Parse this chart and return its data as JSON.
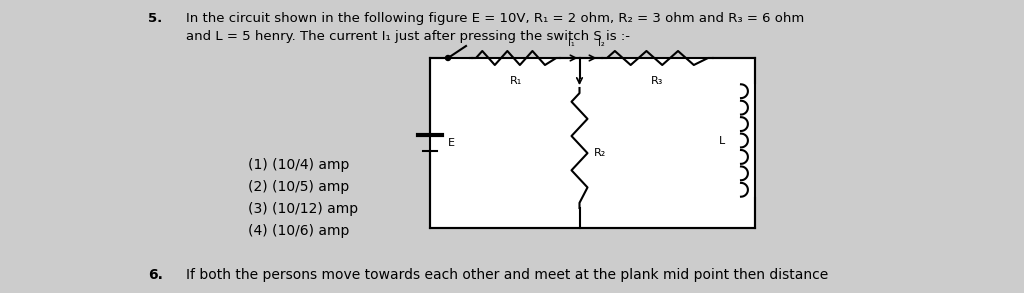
{
  "question_number": "5.",
  "question_text": "In the circuit shown in the following figure E = 10V, R₁ = 2 ohm, R₂ = 3 ohm and R₃ = 6 ohm",
  "question_text2": "and L = 5 henry. The current I₁ just after pressing the switch S is :-",
  "options": [
    "(1) (10/4) amp",
    "(2) (10/5) amp",
    "(3) (10/12) amp",
    "(4) (10/6) amp"
  ],
  "footer_number": "6.",
  "footer_text": "If both the persons move towards each other and meet at the plank mid point then distance",
  "bg_color": "#cccccc",
  "text_color": "#000000",
  "circuit_bg": "#e8e8e8",
  "font_size_q": 9.5,
  "font_size_opt": 10,
  "font_size_footer": 10
}
